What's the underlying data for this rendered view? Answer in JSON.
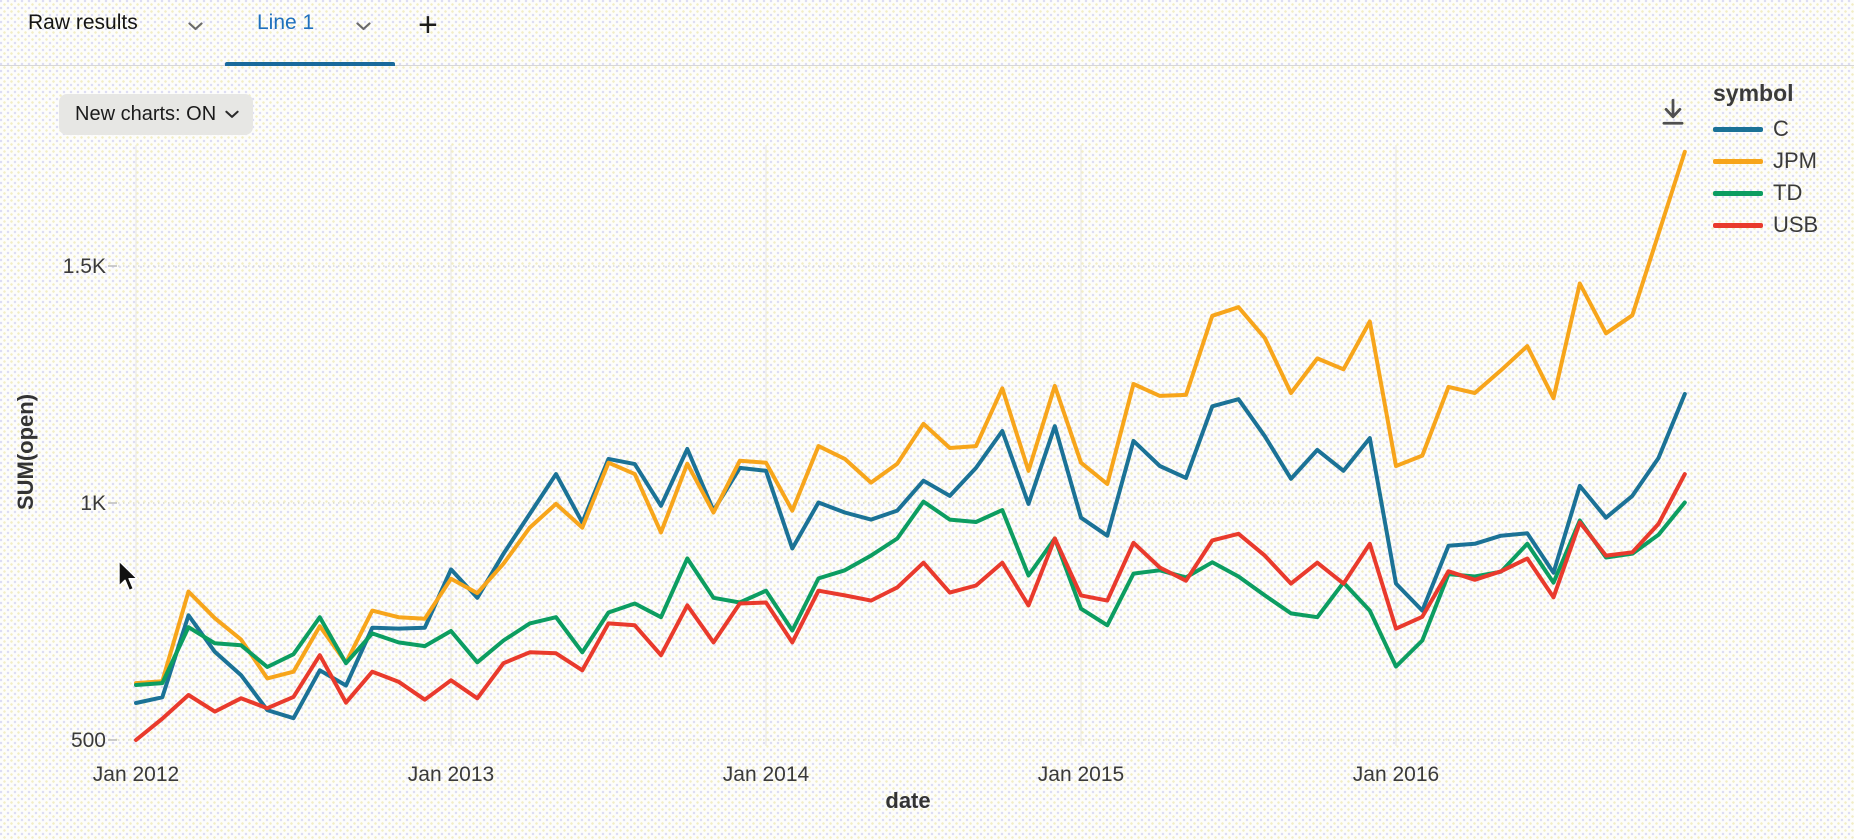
{
  "header": {
    "tabs": [
      {
        "label": "Raw results",
        "active": false
      },
      {
        "label": "Line 1",
        "active": true
      }
    ],
    "add_tab_label": "+"
  },
  "toolbar": {
    "new_charts_label": "New charts: ON"
  },
  "icons": {
    "chevron_down": "⌄",
    "download": "⤓",
    "add_tab": "+"
  },
  "colors": {
    "active_tab_text": "#1f70bd",
    "active_tab_underline": "#186a9c",
    "button_background": "#e7e7e4"
  },
  "chart_data": {
    "type": "line",
    "title": "",
    "xlabel": "date",
    "ylabel": "SUM(open)",
    "legend_title": "symbol",
    "legend_position": "top-right",
    "grid": {
      "vertical": "solid-faint",
      "horizontal": "dotted"
    },
    "x_unit": "month",
    "x_start_label": "Jan 2012",
    "x_end_label": "Dec 2016",
    "x_tick_labels": [
      "Jan 2012",
      "Jan 2013",
      "Jan 2014",
      "Jan 2015",
      "Jan 2016"
    ],
    "x_tick_month_indices": [
      0,
      12,
      24,
      36,
      48
    ],
    "y_ticks": [
      {
        "value": 500,
        "label": "500"
      },
      {
        "value": 1000,
        "label": "1K"
      },
      {
        "value": 1500,
        "label": "1.5K"
      }
    ],
    "ylim": [
      460,
      1830
    ],
    "series": [
      {
        "name": "C",
        "color": "#1b7296",
        "values": [
          578,
          590,
          763,
          686,
          637,
          563,
          546,
          647,
          615,
          737,
          735,
          737,
          860,
          800,
          893,
          977,
          1061,
          959,
          1093,
          1082,
          994,
          1114,
          984,
          1074,
          1068,
          904,
          1001,
          980,
          965,
          984,
          1047,
          1015,
          1074,
          1152,
          998,
          1162,
          969,
          931,
          1131,
          1078,
          1053,
          1204,
          1219,
          1141,
          1051,
          1112,
          1068,
          1137,
          830,
          773,
          910,
          914,
          931,
          936,
          853,
          1036,
          969,
          1015,
          1095,
          1230
        ]
      },
      {
        "name": "JPM",
        "color": "#f7a51b",
        "values": [
          620,
          624,
          813,
          757,
          712,
          630,
          644,
          740,
          663,
          773,
          759,
          756,
          840,
          810,
          872,
          948,
          998,
          948,
          1085,
          1061,
          938,
          1083,
          980,
          1089,
          1085,
          984,
          1120,
          1093,
          1043,
          1083,
          1167,
          1116,
          1120,
          1242,
          1068,
          1247,
          1085,
          1040,
          1251,
          1226,
          1228,
          1395,
          1413,
          1348,
          1232,
          1305,
          1282,
          1383,
          1078,
          1100,
          1245,
          1232,
          1280,
          1331,
          1221,
          1463,
          1358,
          1396,
          1568,
          1741
        ]
      },
      {
        "name": "TD",
        "color": "#0c9d61",
        "values": [
          616,
          620,
          738,
          704,
          700,
          654,
          681,
          759,
          662,
          725,
          706,
          698,
          730,
          664,
          710,
          746,
          759,
          685,
          769,
          788,
          759,
          883,
          800,
          790,
          815,
          731,
          841,
          858,
          889,
          925,
          1003,
          965,
          960,
          985,
          847,
          925,
          777,
          742,
          851,
          858,
          843,
          875,
          845,
          805,
          767,
          759,
          832,
          773,
          655,
          710,
          850,
          845,
          855,
          914,
          832,
          963,
          885,
          893,
          933,
          1001
        ]
      },
      {
        "name": "USB",
        "color": "#e93a2c",
        "values": [
          500,
          545,
          595,
          560,
          588,
          567,
          591,
          679,
          579,
          644,
          623,
          585,
          626,
          588,
          662,
          685,
          683,
          647,
          746,
          742,
          679,
          784,
          706,
          788,
          790,
          706,
          815,
          805,
          794,
          822,
          874,
          811,
          826,
          874,
          784,
          925,
          805,
          794,
          916,
          864,
          836,
          921,
          935,
          889,
          830,
          874,
          830,
          914,
          735,
          760,
          856,
          838,
          856,
          883,
          801,
          959,
          889,
          896,
          956,
          1061
        ]
      }
    ]
  }
}
